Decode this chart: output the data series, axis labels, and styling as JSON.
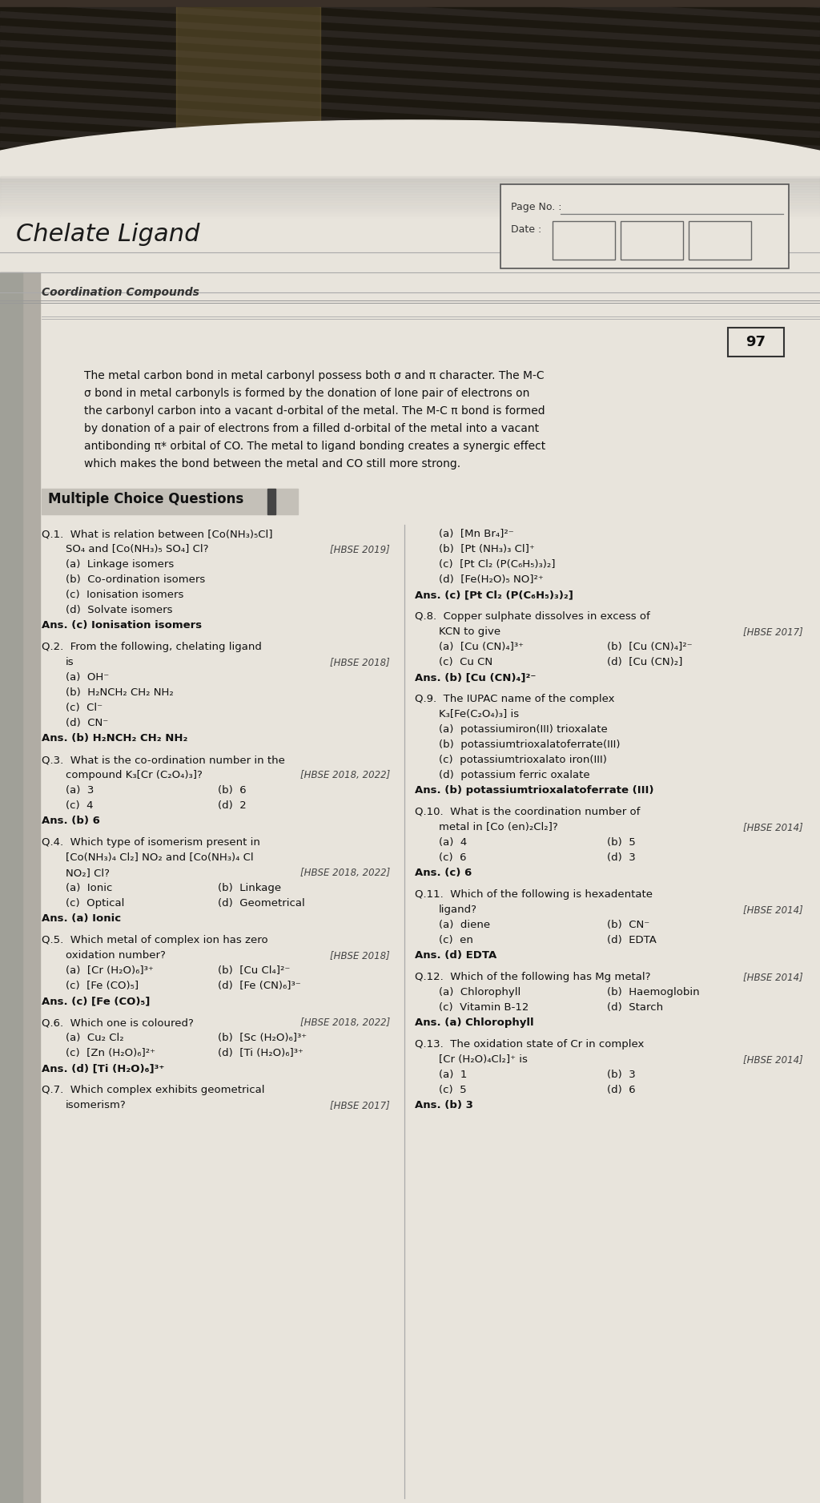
{
  "page_number": "97",
  "subject_header": "Coordination Compounds",
  "handwritten_title": "Chelate Ligand",
  "page_no_label": "Page No. :",
  "date_label": "Date :",
  "intro_text_lines": [
    "The metal carbon bond in metal carbonyl possess both σ and π character. The M-C",
    "σ bond in metal carbonyls is formed by the donation of lone pair of electrons on",
    "the carbonyl carbon into a vacant d-orbital of the metal. The M-C π bond is formed",
    "by donation of a pair of electrons from a filled d-orbital of the metal into a vacant",
    "antibonding π* orbital of CO. The metal to ligand bonding creates a synergic effect",
    "which makes the bond between the metal and CO still more strong."
  ],
  "section_title": "Multiple Choice Questions",
  "left_questions": [
    {
      "num": "Q.1.",
      "text_lines": [
        "What is relation between [Co(NH₃)₅Cl]",
        "SO₄ and [Co(NH₃)₅ SO₄] Cl?"
      ],
      "year": "[HBSE 2019]",
      "options": [
        "(a)  Linkage isomers",
        "(b)  Co-ordination isomers",
        "(c)  Ionisation isomers",
        "(d)  Solvate isomers"
      ],
      "options_2col": null,
      "answer": "Ans. (c) Ionisation isomers"
    },
    {
      "num": "Q.2.",
      "text_lines": [
        "From the following, chelating ligand",
        "is"
      ],
      "year": "[HBSE 2018]",
      "options": [
        "(a)  OH⁻",
        "(b)  H₂NCH₂ CH₂ NH₂",
        "(c)  Cl⁻",
        "(d)  CN⁻"
      ],
      "options_2col": null,
      "answer": "Ans. (b) H₂NCH₂ CH₂ NH₂"
    },
    {
      "num": "Q.3.",
      "text_lines": [
        "What is the co-ordination number in the",
        "compound K₃[Cr (C₂O₄)₃]?"
      ],
      "year": "[HBSE 2018, 2022]",
      "options": null,
      "options_2col": [
        [
          "(a)  3",
          "(b)  6"
        ],
        [
          "(c)  4",
          "(d)  2"
        ]
      ],
      "answer": "Ans. (b) 6"
    },
    {
      "num": "Q.4.",
      "text_lines": [
        "Which type of isomerism present in",
        "[Co(NH₃)₄ Cl₂] NO₂ and [Co(NH₃)₄ Cl",
        "NO₂] Cl?"
      ],
      "year": "[HBSE 2018, 2022]",
      "options": null,
      "options_2col": [
        [
          "(a)  Ionic",
          "(b)  Linkage"
        ],
        [
          "(c)  Optical",
          "(d)  Geometrical"
        ]
      ],
      "answer": "Ans. (a) Ionic"
    },
    {
      "num": "Q.5.",
      "text_lines": [
        "Which metal of complex ion has zero",
        "oxidation number?"
      ],
      "year": "[HBSE 2018]",
      "options": null,
      "options_2col": [
        [
          "(a)  [Cr (H₂O)₆]³⁺",
          "(b)  [Cu Cl₄]²⁻"
        ],
        [
          "(c)  [Fe (CO)₅]",
          "(d)  [Fe (CN)₆]³⁻"
        ]
      ],
      "answer": "Ans. (c) [Fe (CO)₅]"
    },
    {
      "num": "Q.6.",
      "text_lines": [
        "Which one is coloured?"
      ],
      "year": "[HBSE 2018, 2022]",
      "options": null,
      "options_2col": [
        [
          "(a)  Cu₂ Cl₂",
          "(b)  [Sc (H₂O)₆]³⁺"
        ],
        [
          "(c)  [Zn (H₂O)₆]²⁺",
          "(d)  [Ti (H₂O)₆]³⁺"
        ]
      ],
      "answer": "Ans. (d) [Ti (H₂O)₆]³⁺"
    },
    {
      "num": "Q.7.",
      "text_lines": [
        "Which complex exhibits geometrical",
        "isomerism?"
      ],
      "year": "[HBSE 2017]",
      "options": null,
      "options_2col": null,
      "answer": null
    }
  ],
  "right_questions": [
    {
      "num": "",
      "text_lines": [],
      "year": "",
      "options": [
        "(a)  [Mn Br₄]²⁻",
        "(b)  [Pt (NH₃)₃ Cl]⁺",
        "(c)  [Pt Cl₂ (P(C₆H₅)₃)₂]",
        "(d)  [Fe(H₂O)₅ NO]²⁺"
      ],
      "options_2col": null,
      "answer": "Ans. (c) [Pt Cl₂ (P(C₆H₅)₃)₂]"
    },
    {
      "num": "Q.8.",
      "text_lines": [
        "Copper sulphate dissolves in excess of",
        "KCN to give"
      ],
      "year": "[HBSE 2017]",
      "options": null,
      "options_2col": [
        [
          "(a)  [Cu (CN)₄]³⁺",
          "(b)  [Cu (CN)₄]²⁻"
        ],
        [
          "(c)  Cu CN",
          "(d)  [Cu (CN)₂]"
        ]
      ],
      "answer": "Ans. (b) [Cu (CN)₄]²⁻"
    },
    {
      "num": "Q.9.",
      "text_lines": [
        "The IUPAC name of the complex",
        "K₃[Fe(C₂O₄)₃] is"
      ],
      "year": "",
      "options": [
        "(a)  potassiumiron(III) trioxalate",
        "(b)  potassiumtrioxalatoferrate(III)",
        "(c)  potassiumtrioxalato iron(III)",
        "(d)  potassium ferric oxalate"
      ],
      "options_2col": null,
      "answer": "Ans. (b) potassiumtrioxalatoferrate (III)"
    },
    {
      "num": "Q.10.",
      "text_lines": [
        "What is the coordination number of",
        "metal in [Co (en)₂Cl₂]?"
      ],
      "year": "[HBSE 2014]",
      "options": null,
      "options_2col": [
        [
          "(a)  4",
          "(b)  5"
        ],
        [
          "(c)  6",
          "(d)  3"
        ]
      ],
      "answer": "Ans. (c) 6"
    },
    {
      "num": "Q.11.",
      "text_lines": [
        "Which of the following is hexadentate",
        "ligand?"
      ],
      "year": "[HBSE 2014]",
      "options": null,
      "options_2col": [
        [
          "(a)  diene",
          "(b)  CN⁻"
        ],
        [
          "(c)  en",
          "(d)  EDTA"
        ]
      ],
      "answer": "Ans. (d) EDTA"
    },
    {
      "num": "Q.12.",
      "text_lines": [
        "Which of the following has Mg metal?"
      ],
      "year": "[HBSE 2014]",
      "options": null,
      "options_2col": [
        [
          "(a)  Chlorophyll",
          "(b)  Haemoglobin"
        ],
        [
          "(c)  Vitamin B-12",
          "(d)  Starch"
        ]
      ],
      "answer": "Ans. (a) Chlorophyll"
    },
    {
      "num": "Q.13.",
      "text_lines": [
        "The oxidation state of Cr in complex",
        "[Cr (H₂O)₄Cl₂]⁺ is"
      ],
      "year": "[HBSE 2014]",
      "options": null,
      "options_2col": [
        [
          "(a)  1",
          "(b)  3"
        ],
        [
          "(c)  5",
          "(d)  6"
        ]
      ],
      "answer": "Ans. (b) 3"
    }
  ],
  "colors": {
    "dark_binding": "#1c1810",
    "page_bg": "#e8e4dc",
    "left_strip": "#b0aca4",
    "header_line_color": "#888888",
    "text_dark": "#111111",
    "text_mid": "#333333",
    "answer_color": "#111111",
    "mcq_bar_bg": "#c4c0b8",
    "mcq_bar_dark": "#444444",
    "box_border": "#555555",
    "divider_line": "#aaaaaa"
  }
}
